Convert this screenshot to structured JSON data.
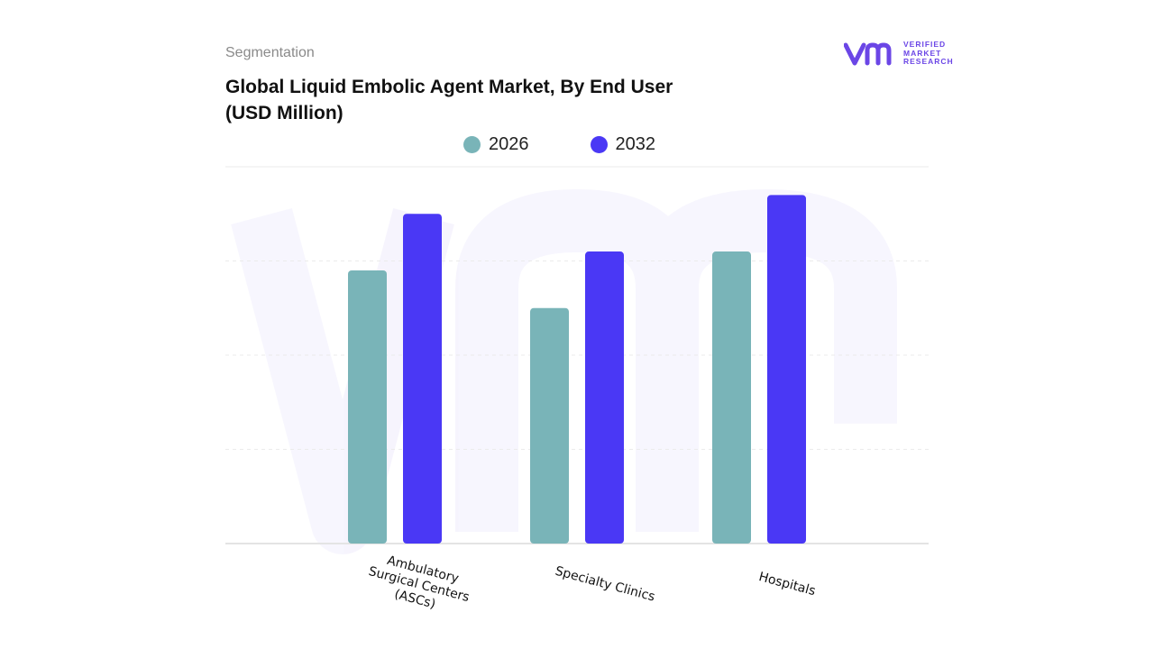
{
  "header": {
    "segment_label": "Segmentation",
    "title": "Global Liquid Embolic Agent Market, By End User (USD Million)"
  },
  "brand": {
    "logo_text_line1": "VERIFIED",
    "logo_text_line2": "MARKET",
    "logo_text_line3": "RESEARCH",
    "logo_color": "#6b46e6"
  },
  "chart_data": {
    "type": "bar",
    "title": "Global Liquid Embolic Agent Market, By End User (USD Million)",
    "categories": [
      "Ambulatory Surgical Centers (ASCs)",
      "Specialty Clinics",
      "Hospitals"
    ],
    "series": [
      {
        "name": "2026",
        "color": "#79b4b8",
        "values": [
          2.9,
          2.5,
          3.1
        ]
      },
      {
        "name": "2032",
        "color": "#4a38f5",
        "values": [
          3.5,
          3.1,
          3.7
        ]
      }
    ],
    "ylim": [
      0,
      4
    ],
    "grid": true,
    "legend": "top-center",
    "xlabel": "",
    "ylabel": ""
  }
}
